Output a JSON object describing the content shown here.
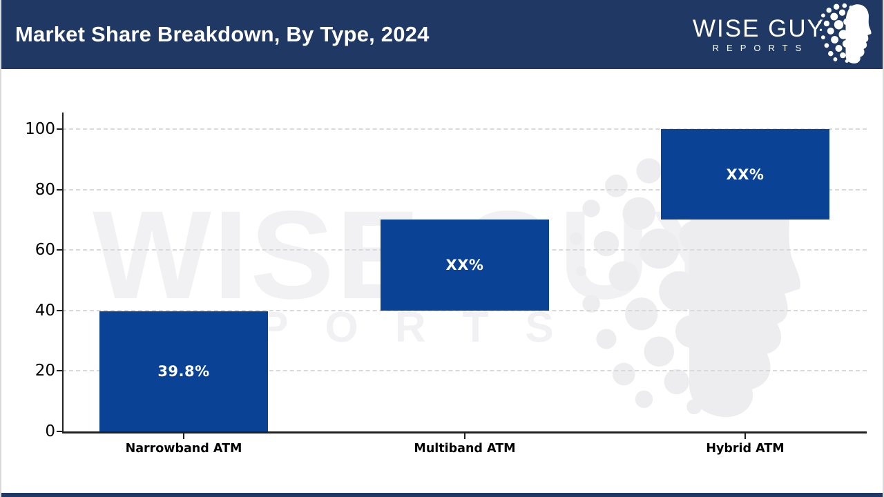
{
  "header": {
    "title": "Market Share Breakdown, By Type, 2024",
    "bg_color": "#1f3864",
    "logo": {
      "line1": "WISE GUY",
      "line2": "REPORTS"
    }
  },
  "watermark": {
    "line1": "WISE GUY",
    "line2": "REPORTS"
  },
  "colors": {
    "header_navy": "#1f3864",
    "bar_blue": "#0a4296",
    "gridline_gray": "#d9d9d9",
    "axis_black": "#1f1f1f",
    "watermark_gray": "#f1f1f3"
  },
  "chart_data": {
    "type": "bar",
    "subtype": "floating-segment (stacked breakdown) column chart",
    "title": "Market Share Breakdown, By Type, 2024",
    "categories": [
      "Narrowband ATM",
      "Multiband ATM",
      "Hybrid ATM"
    ],
    "segments": [
      {
        "category": "Narrowband ATM",
        "start": 0,
        "end": 39.8,
        "label": "39.8%"
      },
      {
        "category": "Multiband ATM",
        "start": 40,
        "end": 70,
        "label": "XX%"
      },
      {
        "category": "Hybrid ATM",
        "start": 70,
        "end": 100,
        "label": "XX%"
      }
    ],
    "xlabel": "",
    "ylabel": "",
    "yticks": [
      0,
      20,
      40,
      60,
      80,
      100
    ],
    "ylim": [
      0,
      105.5
    ],
    "grid": "horizontal dashed",
    "legend": "none",
    "bar_color": "#0a4296",
    "value_label_color": "#ffffff"
  }
}
